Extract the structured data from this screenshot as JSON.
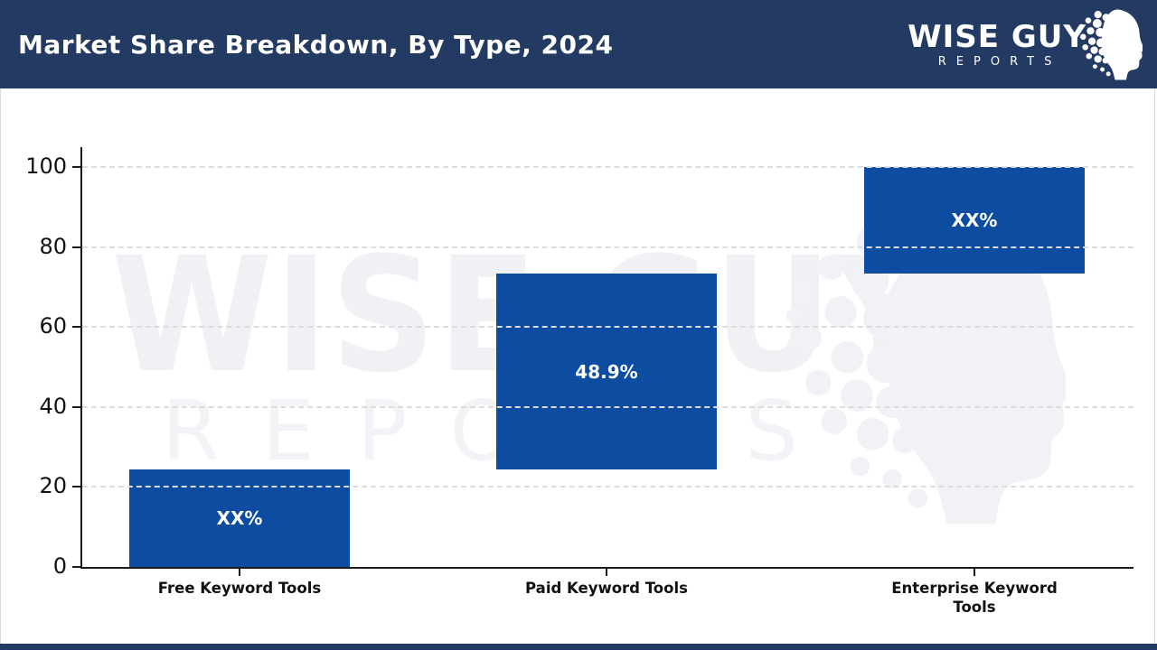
{
  "header": {
    "title": "Market Share Breakdown, By Type, 2024",
    "brand": {
      "line1": "WISE GUY",
      "line2": "REPORTS"
    }
  },
  "watermark": {
    "line1": "WISE GUY",
    "line2": "REPORTS"
  },
  "chart_data": {
    "type": "bar",
    "subtype": "floating-segment-bars (stacked breakdown shown as separate floating bars)",
    "title": "Market Share Breakdown, By Type, 2024",
    "categories": [
      "Free Keyword Tools",
      "Paid Keyword Tools",
      "Enterprise Keyword Tools"
    ],
    "segments": [
      {
        "category": "Free Keyword Tools",
        "from": 0,
        "to": 24.4,
        "label": "XX%"
      },
      {
        "category": "Paid Keyword Tools",
        "from": 24.4,
        "to": 73.3,
        "label": "48.9%"
      },
      {
        "category": "Enterprise Keyword Tools",
        "from": 73.3,
        "to": 100,
        "label": "XX%"
      }
    ],
    "xlabel": "",
    "ylabel": "",
    "yticks": [
      0,
      20,
      40,
      60,
      80,
      100
    ],
    "ylim": [
      0,
      105
    ],
    "grid": "horizontal dashed",
    "legend": "none",
    "bar_color": "#0d4da1",
    "label_color": "#ffffff",
    "header_color": "#233a63"
  }
}
